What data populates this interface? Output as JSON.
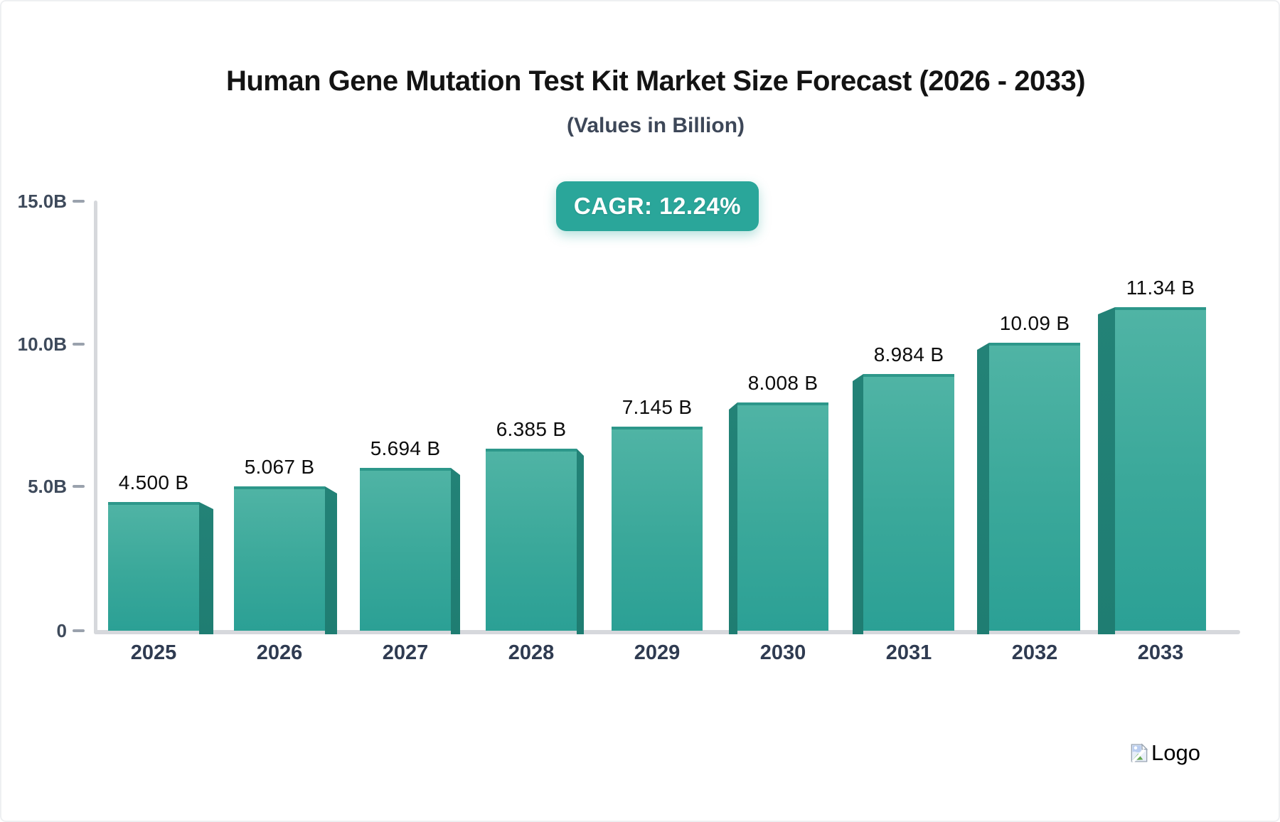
{
  "header": {
    "title": "Human Gene Mutation Test Kit Market Size Forecast (2026 - 2033)",
    "subtitle": "(Values in Billion)",
    "cagr_label": "CAGR: 12.24%"
  },
  "chart_data": {
    "type": "bar",
    "title": "Human Gene Mutation Test Kit Market Size Forecast (2026 - 2033)",
    "subtitle": "(Values in Billion)",
    "cagr": "12.24%",
    "categories": [
      "2025",
      "2026",
      "2027",
      "2028",
      "2029",
      "2030",
      "2031",
      "2032",
      "2033"
    ],
    "values": [
      4.5,
      5.067,
      5.694,
      6.385,
      7.145,
      8.008,
      8.984,
      10.09,
      11.34
    ],
    "value_labels": [
      "4.500 B",
      "5.067 B",
      "5.694 B",
      "6.385 B",
      "7.145 B",
      "8.008 B",
      "8.984 B",
      "10.09 B",
      "11.34 B"
    ],
    "xlabel": "",
    "ylabel": "",
    "ylim": [
      0,
      15
    ],
    "ytick_values": [
      15,
      10,
      5,
      0
    ],
    "ytick_labels": [
      "15.0B",
      "10.0B",
      "5.0B",
      "0"
    ],
    "grid": false,
    "legend": null,
    "bar_style": "3d-perspective"
  },
  "footer": {
    "logo_alt": "Logo"
  },
  "colors": {
    "badge_bg": "#2aa69a",
    "bar_top": "#50b4a5",
    "bar_bottom": "#2ba095",
    "bar_side": "#1f7d72",
    "axis_line": "#d6d8dc",
    "tick": "#9aa2ad",
    "axis_label_text": "#3e4a5b",
    "year_label_text": "#2f3b51",
    "title_text": "#131313",
    "subtitle_text": "#3d4758"
  }
}
